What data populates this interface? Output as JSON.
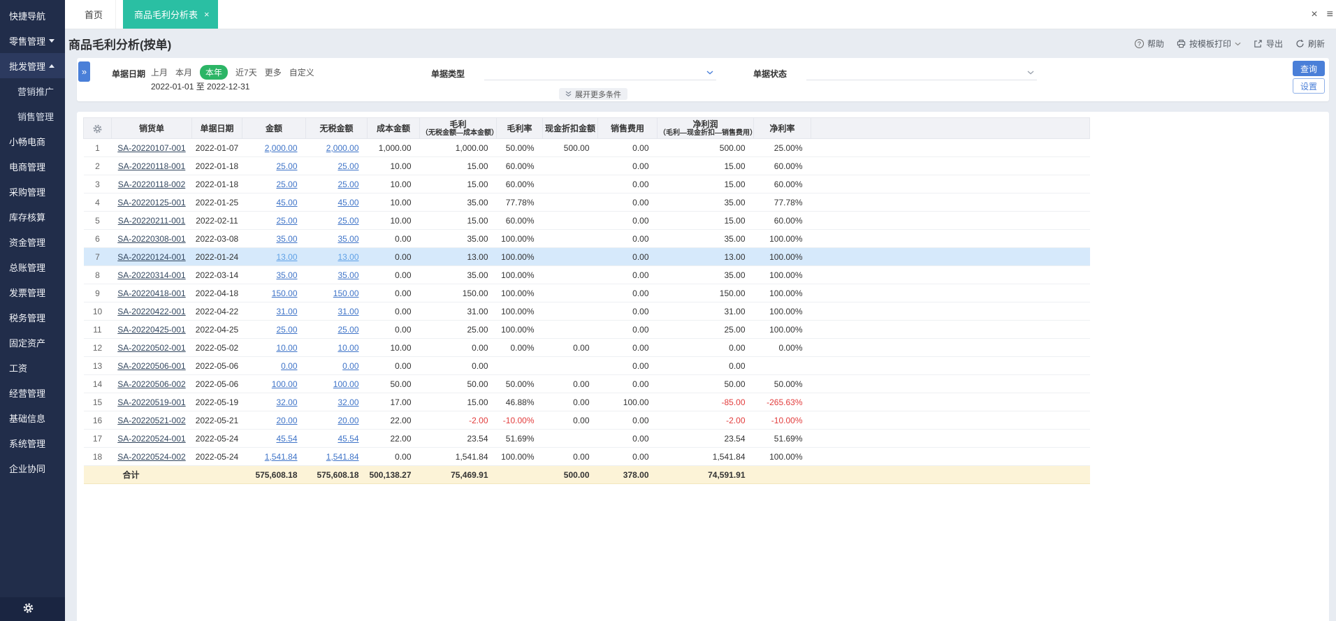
{
  "sidebar": {
    "items": [
      {
        "label": "快捷导航",
        "type": "top"
      },
      {
        "label": "零售管理",
        "type": "top",
        "caret": "down"
      },
      {
        "label": "批发管理",
        "type": "top",
        "caret": "up",
        "active": true
      },
      {
        "label": "营销推广",
        "type": "sub"
      },
      {
        "label": "销售管理",
        "type": "sub"
      },
      {
        "label": "小畅电商",
        "type": "top"
      },
      {
        "label": "电商管理",
        "type": "top"
      },
      {
        "label": "采购管理",
        "type": "top"
      },
      {
        "label": "库存核算",
        "type": "top"
      },
      {
        "label": "资金管理",
        "type": "top"
      },
      {
        "label": "总账管理",
        "type": "top"
      },
      {
        "label": "发票管理",
        "type": "top"
      },
      {
        "label": "税务管理",
        "type": "top"
      },
      {
        "label": "固定资产",
        "type": "top"
      },
      {
        "label": "工资",
        "type": "top"
      },
      {
        "label": "经营管理",
        "type": "top"
      },
      {
        "label": "基础信息",
        "type": "top"
      },
      {
        "label": "系统管理",
        "type": "top"
      },
      {
        "label": "企业协同",
        "type": "top"
      }
    ]
  },
  "tabs": {
    "home": "首页",
    "active": "商品毛利分析表"
  },
  "header": {
    "title": "商品毛利分析(按单)",
    "help": "帮助",
    "print": "按模板打印",
    "export": "导出",
    "refresh": "刷新"
  },
  "filters": {
    "date_label": "单据日期",
    "quick_options": [
      "上月",
      "本月",
      "本年",
      "近7天",
      "更多",
      "自定义"
    ],
    "selected_quick": "本年",
    "date_range": "2022-01-01 至 2022-12-31",
    "doc_type_label": "单据类型",
    "doc_status_label": "单据状态",
    "query_button": "查询",
    "settings_button": "设置",
    "expand_more": "展开更多条件"
  },
  "table": {
    "columns": [
      {
        "key": "order",
        "label": "销货单",
        "link": "doc"
      },
      {
        "key": "date",
        "label": "单据日期"
      },
      {
        "key": "amount",
        "label": "金额",
        "link": "amt"
      },
      {
        "key": "taxfree",
        "label": "无税金额",
        "link": "amt"
      },
      {
        "key": "cost",
        "label": "成本金额"
      },
      {
        "key": "gross",
        "label": "毛利",
        "sub": "（无税金额—成本金额）"
      },
      {
        "key": "grossrate",
        "label": "毛利率"
      },
      {
        "key": "discount",
        "label": "现金折扣金额"
      },
      {
        "key": "expense",
        "label": "销售费用"
      },
      {
        "key": "net",
        "label": "净利润",
        "sub": "（毛利—现金折扣—销售费用）"
      },
      {
        "key": "netrate",
        "label": "净利率"
      }
    ],
    "rows": [
      {
        "cells": [
          "SA-20220107-001",
          "2022-01-07",
          "2,000.00",
          "2,000.00",
          "1,000.00",
          "1,000.00",
          "50.00%",
          "500.00",
          "0.00",
          "500.00",
          "25.00%"
        ]
      },
      {
        "cells": [
          "SA-20220118-001",
          "2022-01-18",
          "25.00",
          "25.00",
          "10.00",
          "15.00",
          "60.00%",
          "",
          "0.00",
          "15.00",
          "60.00%"
        ]
      },
      {
        "cells": [
          "SA-20220118-002",
          "2022-01-18",
          "25.00",
          "25.00",
          "10.00",
          "15.00",
          "60.00%",
          "",
          "0.00",
          "15.00",
          "60.00%"
        ]
      },
      {
        "cells": [
          "SA-20220125-001",
          "2022-01-25",
          "45.00",
          "45.00",
          "10.00",
          "35.00",
          "77.78%",
          "",
          "0.00",
          "35.00",
          "77.78%"
        ]
      },
      {
        "cells": [
          "SA-20220211-001",
          "2022-02-11",
          "25.00",
          "25.00",
          "10.00",
          "15.00",
          "60.00%",
          "",
          "0.00",
          "15.00",
          "60.00%"
        ]
      },
      {
        "cells": [
          "SA-20220308-001",
          "2022-03-08",
          "35.00",
          "35.00",
          "0.00",
          "35.00",
          "100.00%",
          "",
          "0.00",
          "35.00",
          "100.00%"
        ]
      },
      {
        "cells": [
          "SA-20220124-001",
          "2022-01-24",
          "13.00",
          "13.00",
          "0.00",
          "13.00",
          "100.00%",
          "",
          "0.00",
          "13.00",
          "100.00%"
        ],
        "selected": true
      },
      {
        "cells": [
          "SA-20220314-001",
          "2022-03-14",
          "35.00",
          "35.00",
          "0.00",
          "35.00",
          "100.00%",
          "",
          "0.00",
          "35.00",
          "100.00%"
        ]
      },
      {
        "cells": [
          "SA-20220418-001",
          "2022-04-18",
          "150.00",
          "150.00",
          "0.00",
          "150.00",
          "100.00%",
          "",
          "0.00",
          "150.00",
          "100.00%"
        ]
      },
      {
        "cells": [
          "SA-20220422-001",
          "2022-04-22",
          "31.00",
          "31.00",
          "0.00",
          "31.00",
          "100.00%",
          "",
          "0.00",
          "31.00",
          "100.00%"
        ]
      },
      {
        "cells": [
          "SA-20220425-001",
          "2022-04-25",
          "25.00",
          "25.00",
          "0.00",
          "25.00",
          "100.00%",
          "",
          "0.00",
          "25.00",
          "100.00%"
        ]
      },
      {
        "cells": [
          "SA-20220502-001",
          "2022-05-02",
          "10.00",
          "10.00",
          "10.00",
          "0.00",
          "0.00%",
          "0.00",
          "0.00",
          "0.00",
          "0.00%"
        ]
      },
      {
        "cells": [
          "SA-20220506-001",
          "2022-05-06",
          "0.00",
          "0.00",
          "0.00",
          "0.00",
          "",
          "",
          "0.00",
          "0.00",
          ""
        ]
      },
      {
        "cells": [
          "SA-20220506-002",
          "2022-05-06",
          "100.00",
          "100.00",
          "50.00",
          "50.00",
          "50.00%",
          "0.00",
          "0.00",
          "50.00",
          "50.00%"
        ]
      },
      {
        "cells": [
          "SA-20220519-001",
          "2022-05-19",
          "32.00",
          "32.00",
          "17.00",
          "15.00",
          "46.88%",
          "0.00",
          "100.00",
          "-85.00",
          "-265.63%"
        ]
      },
      {
        "cells": [
          "SA-20220521-002",
          "2022-05-21",
          "20.00",
          "20.00",
          "22.00",
          "-2.00",
          "-10.00%",
          "0.00",
          "0.00",
          "-2.00",
          "-10.00%"
        ]
      },
      {
        "cells": [
          "SA-20220524-001",
          "2022-05-24",
          "45.54",
          "45.54",
          "22.00",
          "23.54",
          "51.69%",
          "",
          "0.00",
          "23.54",
          "51.69%"
        ]
      },
      {
        "cells": [
          "SA-20220524-002",
          "2022-05-24",
          "1,541.84",
          "1,541.84",
          "0.00",
          "1,541.84",
          "100.00%",
          "0.00",
          "0.00",
          "1,541.84",
          "100.00%"
        ]
      }
    ],
    "total": {
      "cells": [
        "合计",
        "",
        "575,608.18",
        "575,608.18",
        "500,138.27",
        "75,469.91",
        "",
        "500.00",
        "378.00",
        "74,591.91",
        ""
      ]
    }
  },
  "colors": {
    "sidebar_navy": "#212d4a",
    "accent_teal": "#2abfa3",
    "accent_blue": "#4a7fd8",
    "accent_green": "#2cb566",
    "negative_red": "#e23c3c",
    "selected_row_blue": "#d6e9fb",
    "total_row_cream": "#fcf3d7"
  }
}
